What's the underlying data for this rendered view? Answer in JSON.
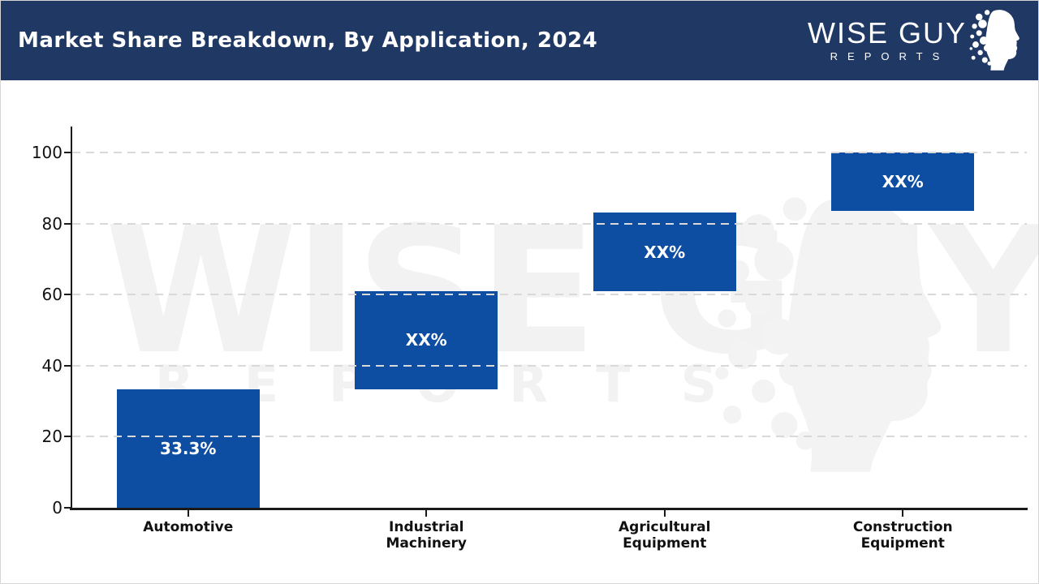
{
  "header": {
    "title": "Market Share Breakdown, By Application, 2024"
  },
  "logo": {
    "line1": "WISE GUY",
    "line2": "REPORTS"
  },
  "watermark": {
    "line1": "WISE GUY",
    "line2": "REPORTS"
  },
  "colors": {
    "header_bg": "#1f3864",
    "bar": "#0d4da2",
    "grid": "#d9d9d9",
    "axis": "#1a1a1a",
    "watermark": "#f2f2f2",
    "label_on_bar": "#ffffff"
  },
  "chart_data": {
    "type": "bar",
    "subtype": "floating-waterfall",
    "title": "Market Share Breakdown, By Application, 2024",
    "categories": [
      [
        "Automotive"
      ],
      [
        "Industrial",
        "Machinery"
      ],
      [
        "Agricultural",
        "Equipment"
      ],
      [
        "Construction",
        "Equipment"
      ]
    ],
    "segments": [
      {
        "category": "Automotive",
        "from": 0,
        "to": 33.3,
        "label": "33.3%"
      },
      {
        "category": "Industrial Machinery",
        "from": 33.3,
        "to": 61,
        "label": "XX%"
      },
      {
        "category": "Agricultural Equipment",
        "from": 61,
        "to": 83,
        "label": "XX%"
      },
      {
        "category": "Construction Equipment",
        "from": 83.5,
        "to": 100,
        "label": "XX%"
      }
    ],
    "y_ticks": [
      0,
      20,
      40,
      60,
      80,
      100
    ],
    "ylim": [
      0,
      105
    ],
    "xlabel": "",
    "ylabel": "",
    "grid": "horizontal-dashed",
    "legend": "none"
  }
}
